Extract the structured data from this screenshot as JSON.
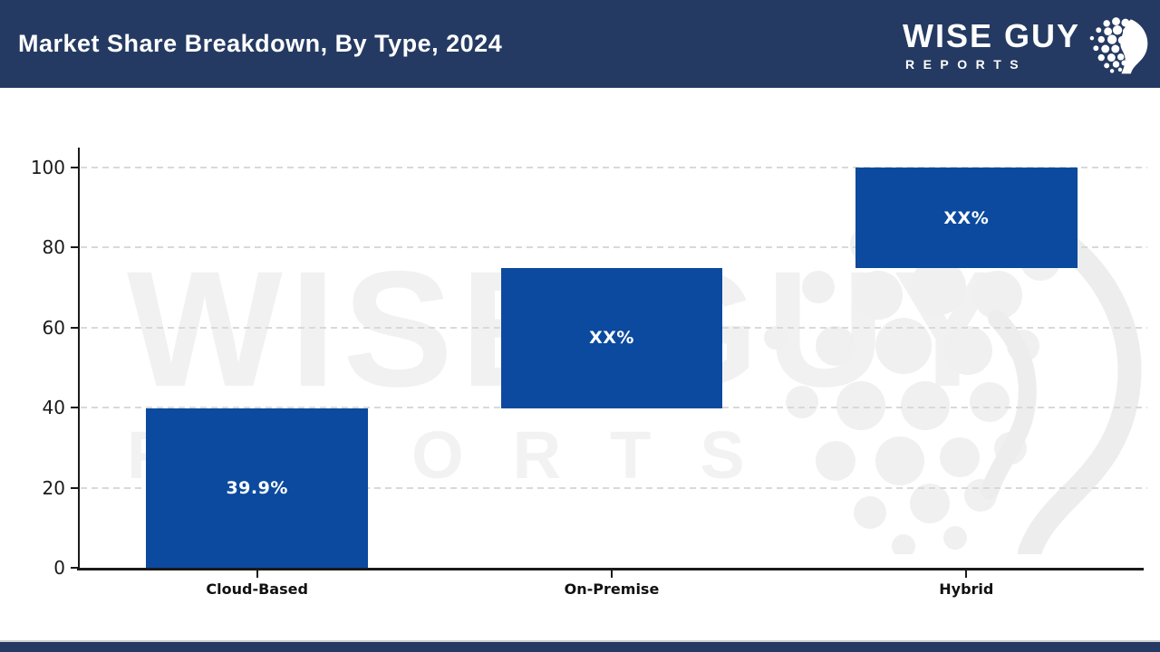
{
  "header": {
    "title": "Market Share Breakdown, By Type, 2024",
    "background_color": "#243a62",
    "logo": {
      "line1": "WISE GUY",
      "line2": "REPORTS"
    }
  },
  "watermark": {
    "line1": "WISE GUY",
    "line2": "REPORTS"
  },
  "chart_data": {
    "type": "bar",
    "subtype": "floating_stacked_breakdown",
    "title": "Market Share Breakdown, By Type, 2024",
    "categories": [
      "Cloud-Based",
      "On-Premise",
      "Hybrid"
    ],
    "segments": [
      {
        "category": "Cloud-Based",
        "start": 0,
        "end": 39.9,
        "value_label": "39.9%"
      },
      {
        "category": "On-Premise",
        "start": 39.9,
        "end": 74.9,
        "value_label": "XX%"
      },
      {
        "category": "Hybrid",
        "start": 74.9,
        "end": 99.9,
        "value_label": "XX%"
      }
    ],
    "ylim": [
      0,
      100
    ],
    "yticks": [
      0,
      20,
      40,
      60,
      80,
      100
    ],
    "grid": {
      "horizontal": true,
      "style": "dashed",
      "color": "#d9d9d9"
    },
    "legend": "none",
    "bar_color": "#0b4a9e",
    "bar_label_color": "#ffffff",
    "axis_color": "#1a1a1a"
  },
  "footer": {
    "background_color": "#243a62"
  }
}
